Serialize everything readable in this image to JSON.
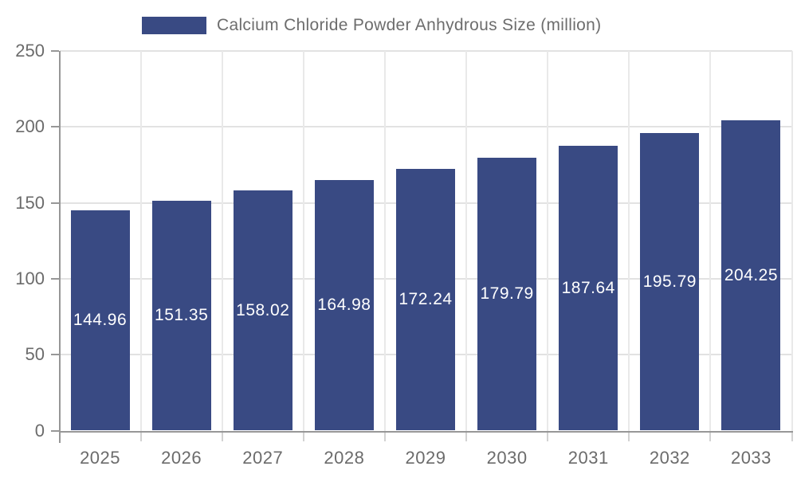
{
  "chart_data": {
    "type": "bar",
    "legend": "Calcium Chloride Powder Anhydrous Size (million)",
    "legend_position": "top",
    "categories": [
      "2025",
      "2026",
      "2027",
      "2028",
      "2029",
      "2030",
      "2031",
      "2032",
      "2033"
    ],
    "values": [
      144.96,
      151.35,
      158.02,
      164.98,
      172.24,
      179.79,
      187.64,
      195.79,
      204.25
    ],
    "value_labels": [
      "144.96",
      "151.35",
      "158.02",
      "164.98",
      "172.24",
      "179.79",
      "187.64",
      "195.79",
      "204.25"
    ],
    "xlabel": "",
    "ylabel": "",
    "ylim": [
      0,
      250
    ],
    "yticks": [
      0,
      50,
      100,
      150,
      200,
      250
    ],
    "grid": true,
    "colors": {
      "bar": "#394a83",
      "value_text": "#ffffff",
      "axis_text": "#6b6b6b",
      "legend_text": "#6d6d6d",
      "grid_h": "#e2e2e2",
      "grid_v": "#e9e9e9",
      "axis_line": "#979797",
      "tick": "#d2d2d2"
    }
  }
}
